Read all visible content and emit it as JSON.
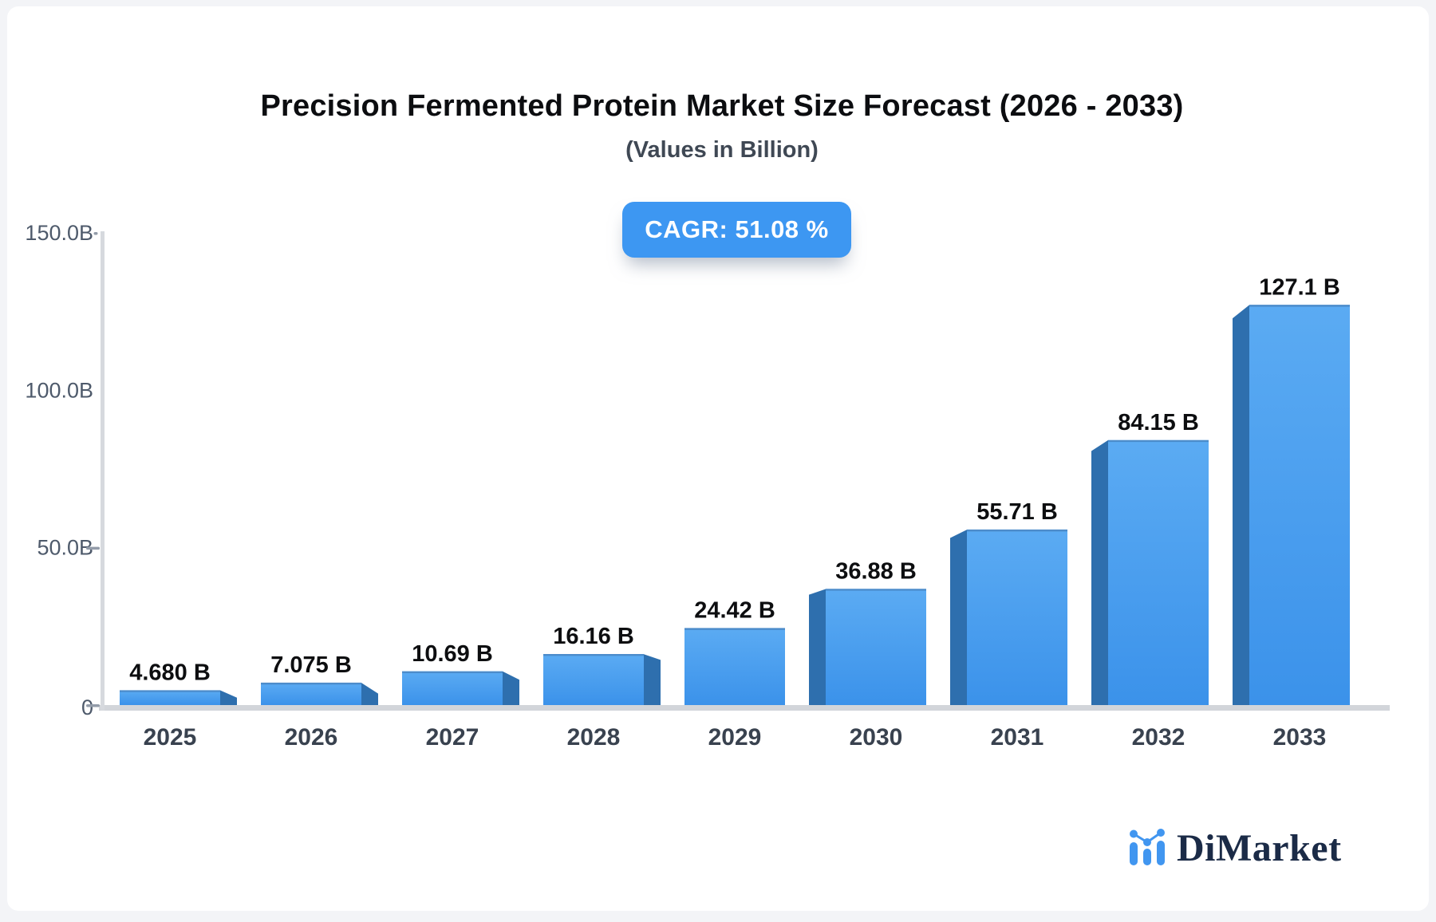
{
  "header": {
    "title": "Precision Fermented Protein Market Size Forecast (2026 - 2033)",
    "subtitle": "(Values in Billion)",
    "cagr_badge": "CAGR: 51.08 %"
  },
  "watermark": {
    "brand": "DiMarket"
  },
  "colors": {
    "page_bg": "#f3f4f7",
    "card_bg": "#ffffff",
    "bar_top": "#5babf3",
    "bar_bottom": "#3b92ea",
    "bar_side": "#2e6fae",
    "bar_top_edge": "#4c8ccb",
    "axis": "#d6d9de",
    "baseline": "#d2d5da",
    "tick": "#939ca9",
    "y_label": "#4e5a6b",
    "x_label": "#39424f",
    "value_label": "#0d0e10",
    "badge_bg": "#3d97f2",
    "badge_text": "#ffffff",
    "brand_blue": "#4196f0",
    "brand_navy": "#1b2b47"
  },
  "chart_data": {
    "type": "bar",
    "title": "Precision Fermented Protein Market Size Forecast (2026 - 2033)",
    "subtitle": "(Values in Billion)",
    "cagr_percent": 51.08,
    "categories": [
      "2025",
      "2026",
      "2027",
      "2028",
      "2029",
      "2030",
      "2031",
      "2032",
      "2033"
    ],
    "values": [
      4.68,
      7.075,
      10.69,
      16.16,
      24.42,
      36.88,
      55.71,
      84.15,
      127.1
    ],
    "value_labels": [
      "4.680 B",
      "7.075 B",
      "10.69 B",
      "16.16 B",
      "24.42 B",
      "36.88 B",
      "55.71 B",
      "84.15 B",
      "127.1 B"
    ],
    "xlabel": "",
    "ylabel": "",
    "ylim": [
      0,
      150
    ],
    "y_ticks": [
      {
        "value": 150,
        "label": "150.0B"
      },
      {
        "value": 100,
        "label": "100.0B"
      },
      {
        "value": 50,
        "label": "50.0B"
      },
      {
        "value": 0,
        "label": "0"
      }
    ],
    "grid": false,
    "legend": false,
    "style": "3d-perspective-bars"
  }
}
